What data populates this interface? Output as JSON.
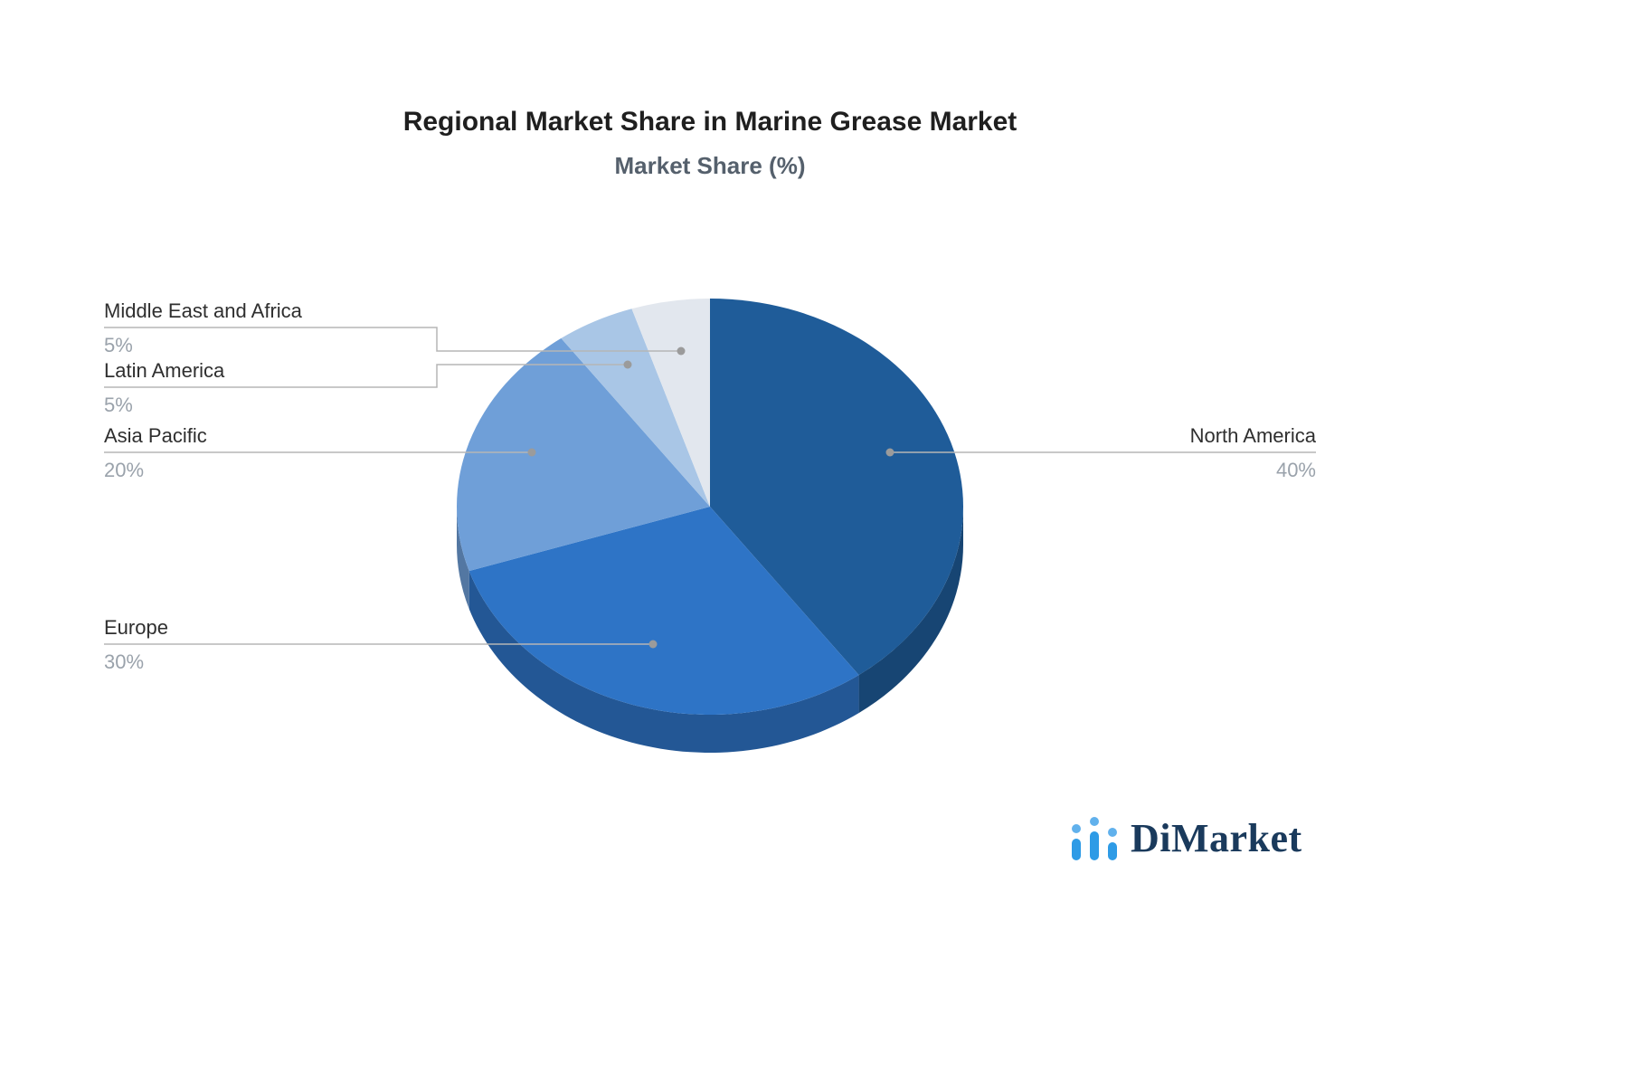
{
  "chart_data": {
    "type": "pie",
    "title": "Regional Market Share in Marine Grease Market",
    "subtitle": "Market Share (%)",
    "unit": "%",
    "effect_3d": true,
    "start_angle_deg": 0,
    "direction": "clockwise",
    "legend_position": "callout-labels",
    "slices": [
      {
        "label": "North America",
        "value": 40,
        "value_label": "40%",
        "color": "#1F5C99"
      },
      {
        "label": "Europe",
        "value": 30,
        "value_label": "30%",
        "color": "#2E74C6"
      },
      {
        "label": "Asia Pacific",
        "value": 20,
        "value_label": "20%",
        "color": "#6F9FD8"
      },
      {
        "label": "Latin America",
        "value": 5,
        "value_label": "5%",
        "color": "#A9C6E6"
      },
      {
        "label": "Middle East and Africa",
        "value": 5,
        "value_label": "5%",
        "color": "#E2E7EE"
      }
    ]
  },
  "branding": {
    "logo_text": "DiMarket",
    "logo_icon": "bar-chart-icon",
    "icon_color": "#2E9BE6",
    "icon_dot_color": "#61B1EC",
    "text_color": "#1A3A5C"
  },
  "colors": {
    "background": "#FFFFFF",
    "title": "#1F1F1F",
    "subtitle": "#55606C",
    "label": "#2F2F2F",
    "value": "#9AA2AB",
    "leader_line": "#B5B5B5",
    "leader_dot": "#9B9B9B"
  }
}
